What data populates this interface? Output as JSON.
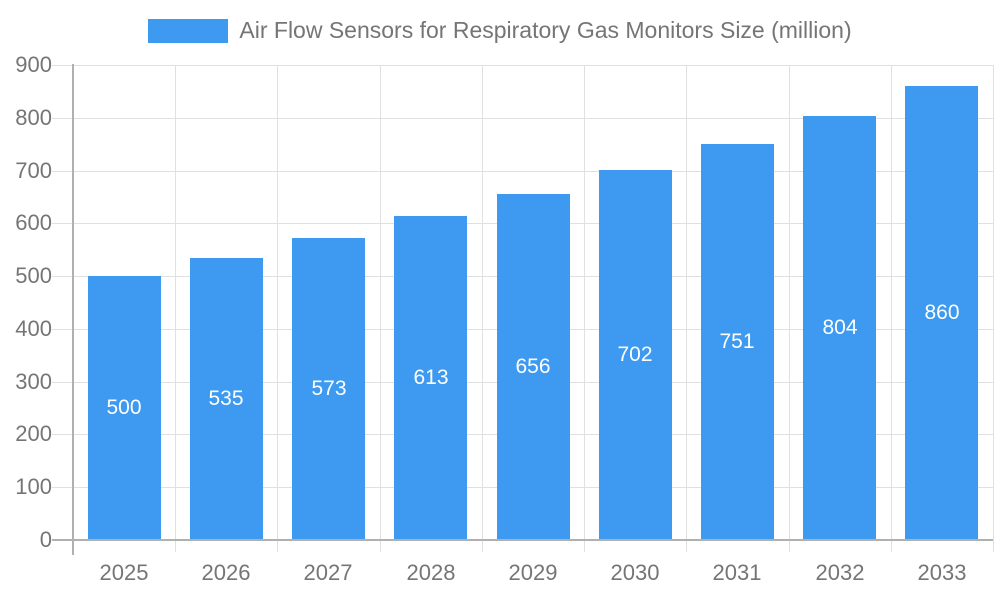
{
  "chart_data": {
    "type": "bar",
    "title": "Air Flow Sensors for Respiratory Gas Monitors Size (million)",
    "categories": [
      "2025",
      "2026",
      "2027",
      "2028",
      "2029",
      "2030",
      "2031",
      "2032",
      "2033"
    ],
    "values": [
      500,
      535,
      573,
      613,
      656,
      702,
      751,
      804,
      860
    ],
    "series": [
      {
        "name": "Air Flow Sensors for Respiratory Gas Monitors Size (million)",
        "values": [
          500,
          535,
          573,
          613,
          656,
          702,
          751,
          804,
          860
        ]
      }
    ],
    "xlabel": "",
    "ylabel": "",
    "ylim": [
      0,
      900
    ],
    "yticks": [
      0,
      100,
      200,
      300,
      400,
      500,
      600,
      700,
      800,
      900
    ],
    "grid": true,
    "legend_position": "top-center",
    "value_labels": "inside-center",
    "colors": {
      "bar": "#3D9AF0",
      "axis_label": "#757575",
      "value_label": "#ffffff",
      "gridline": "#e0e0e0",
      "axis_line": "#b0b0b0",
      "background": "#ffffff"
    }
  }
}
